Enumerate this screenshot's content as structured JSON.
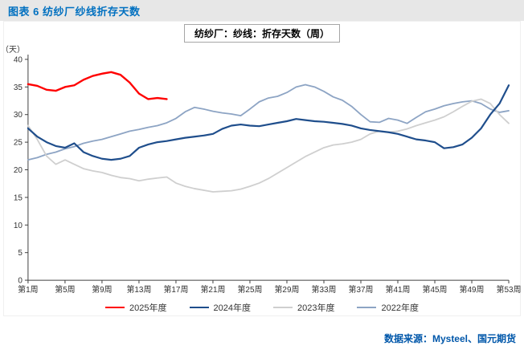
{
  "header": {
    "title": "图表 6  纺纱厂纱线折存天数"
  },
  "footer": {
    "source": "数据来源：Mysteel、国元期货"
  },
  "chart_data": {
    "type": "line",
    "title": "纺纱厂：纱线：折存天数（周）",
    "ylabel": "（天）",
    "xlabel": "",
    "ylim": [
      0,
      40
    ],
    "ytick_step": 5,
    "grid": false,
    "legend_position": "bottom",
    "x_count": 53,
    "xtick_weeks": [
      1,
      5,
      9,
      13,
      17,
      21,
      25,
      29,
      33,
      37,
      41,
      45,
      49,
      53
    ],
    "xtick_labels": [
      "第1周",
      "第5周",
      "第9周",
      "第13周",
      "第17周",
      "第21周",
      "第25周",
      "第29周",
      "第33周",
      "第37周",
      "第41周",
      "第45周",
      "第49周",
      "第53周"
    ],
    "series": [
      {
        "name": "2025年度",
        "color": "#ff0000",
        "width": 2.4,
        "values": [
          35.5,
          35.2,
          34.5,
          34.3,
          35.0,
          35.3,
          36.3,
          37.0,
          37.4,
          37.7,
          37.2,
          35.8,
          33.8,
          32.8,
          33.0,
          32.8
        ]
      },
      {
        "name": "2024年度",
        "color": "#1f4e8c",
        "width": 2.2,
        "values": [
          27.5,
          26.0,
          25.0,
          24.3,
          24.0,
          24.8,
          23.2,
          22.5,
          22.0,
          21.8,
          22.0,
          22.5,
          24.0,
          24.6,
          25.0,
          25.2,
          25.5,
          25.8,
          26.0,
          26.2,
          26.5,
          27.4,
          28.0,
          28.2,
          28.0,
          27.9,
          28.2,
          28.5,
          28.8,
          29.2,
          29.0,
          28.8,
          28.7,
          28.5,
          28.3,
          28.0,
          27.5,
          27.2,
          27.0,
          26.8,
          26.5,
          26.0,
          25.5,
          25.3,
          25.0,
          23.9,
          24.1,
          24.6,
          25.8,
          27.5,
          30.0,
          32.0,
          35.3
        ]
      },
      {
        "name": "2023年度",
        "color": "#cfcfcf",
        "width": 1.8,
        "values": [
          28.0,
          25.5,
          22.5,
          21.0,
          21.8,
          21.0,
          20.2,
          19.8,
          19.5,
          19.0,
          18.6,
          18.4,
          18.0,
          18.3,
          18.5,
          18.7,
          17.6,
          17.0,
          16.6,
          16.3,
          16.0,
          16.1,
          16.2,
          16.5,
          17.0,
          17.6,
          18.4,
          19.4,
          20.4,
          21.4,
          22.4,
          23.2,
          24.0,
          24.5,
          24.7,
          25.0,
          25.5,
          26.5,
          27.0,
          26.8,
          27.0,
          27.4,
          28.0,
          28.5,
          29.0,
          29.6,
          30.5,
          31.5,
          32.4,
          32.8,
          32.0,
          30.0,
          28.4
        ]
      },
      {
        "name": "2022年度",
        "color": "#8da4c4",
        "width": 1.8,
        "values": [
          21.8,
          22.2,
          22.8,
          23.2,
          23.8,
          24.2,
          24.8,
          25.2,
          25.5,
          26.0,
          26.5,
          27.0,
          27.3,
          27.7,
          28.0,
          28.5,
          29.3,
          30.5,
          31.3,
          31.0,
          30.6,
          30.3,
          30.1,
          29.8,
          31.0,
          32.3,
          33.0,
          33.3,
          34.0,
          35.0,
          35.4,
          35.0,
          34.2,
          33.2,
          32.6,
          31.5,
          30.0,
          28.7,
          28.6,
          29.3,
          29.0,
          28.4,
          29.5,
          30.5,
          31.0,
          31.6,
          32.0,
          32.3,
          32.5,
          32.0,
          31.0,
          30.4,
          30.7
        ]
      }
    ]
  }
}
